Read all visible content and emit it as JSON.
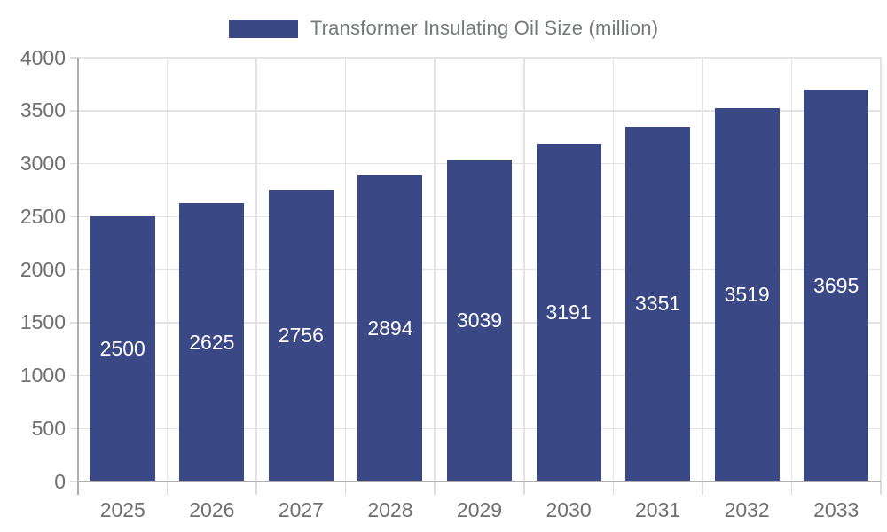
{
  "chart_data": {
    "type": "bar",
    "title": "Transformer Insulating Oil Size (million)",
    "categories": [
      "2025",
      "2026",
      "2027",
      "2028",
      "2029",
      "2030",
      "2031",
      "2032",
      "2033"
    ],
    "values": [
      2500,
      2625,
      2756,
      2894,
      3039,
      3191,
      3351,
      3519,
      3695
    ],
    "bar_value_labels": [
      "2500",
      "2625",
      "2756",
      "2894",
      "3039",
      "3191",
      "3351",
      "3519",
      "3695"
    ],
    "xlabel": "",
    "ylabel": "",
    "ylim": [
      0,
      4000
    ],
    "ytick_step": 500,
    "ytick_labels": [
      "0",
      "500",
      "1000",
      "1500",
      "2000",
      "2500",
      "3000",
      "3500",
      "4000"
    ],
    "grid": "both",
    "legend_position": "top-center",
    "colors": {
      "bar": "#3B4886",
      "bar_label": "#FFFFFF",
      "grid": "#E3E3E3",
      "axis": "#ADADAD",
      "tick": "#DCDCDC",
      "text": "#6F6F6F",
      "legend_text": "#76797C",
      "background": "#FFFFFF"
    }
  }
}
